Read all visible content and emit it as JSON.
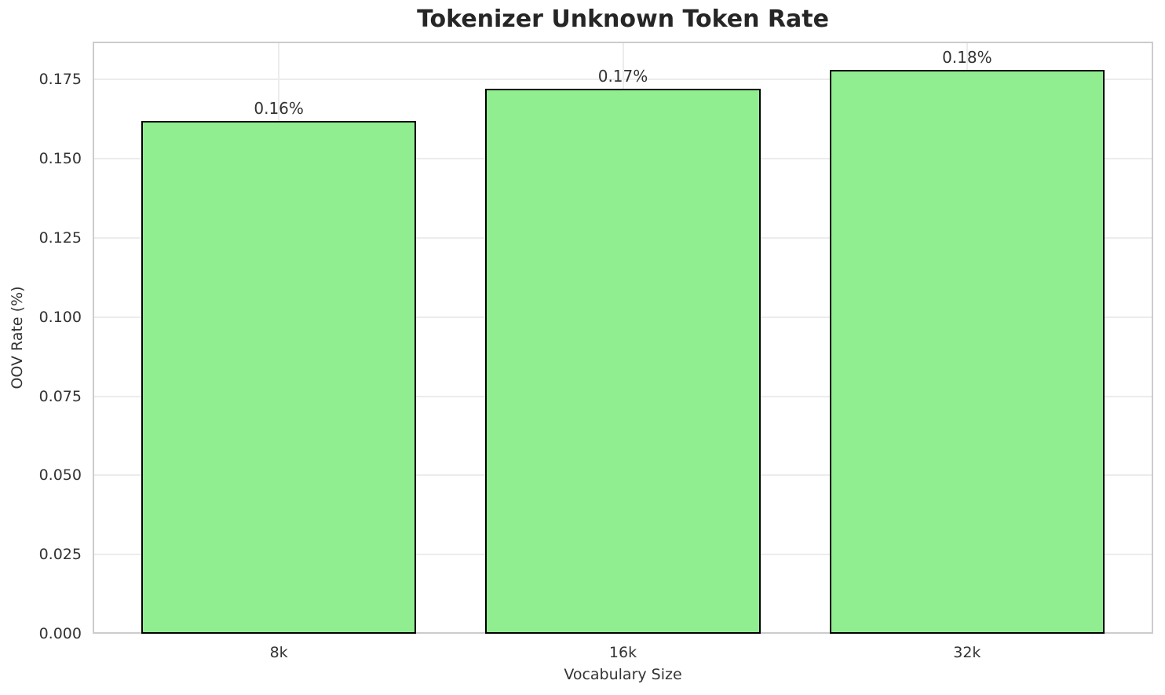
{
  "figure": {
    "background": "#ffffff"
  },
  "chart_data": {
    "type": "bar",
    "title": "Tokenizer Unknown Token Rate",
    "xlabel": "Vocabulary Size",
    "ylabel": "OOV Rate (%)",
    "categories": [
      "8k",
      "16k",
      "32k"
    ],
    "values": [
      0.162,
      0.172,
      0.178
    ],
    "bar_labels": [
      "0.16%",
      "0.17%",
      "0.18%"
    ],
    "ylim": [
      0,
      0.187
    ],
    "yticks": [
      0,
      0.025,
      0.05,
      0.075,
      0.1,
      0.125,
      0.15,
      0.175
    ],
    "ytick_labels": [
      "0.000",
      "0.025",
      "0.050",
      "0.075",
      "0.100",
      "0.125",
      "0.150",
      "0.175"
    ],
    "grid": true,
    "legend": null,
    "colors": {
      "bar_fill": "#90EE90",
      "bar_edge": "#000000",
      "grid": "#ececec",
      "spine": "#cccccc",
      "text": "#333333",
      "title": "#262626"
    }
  }
}
